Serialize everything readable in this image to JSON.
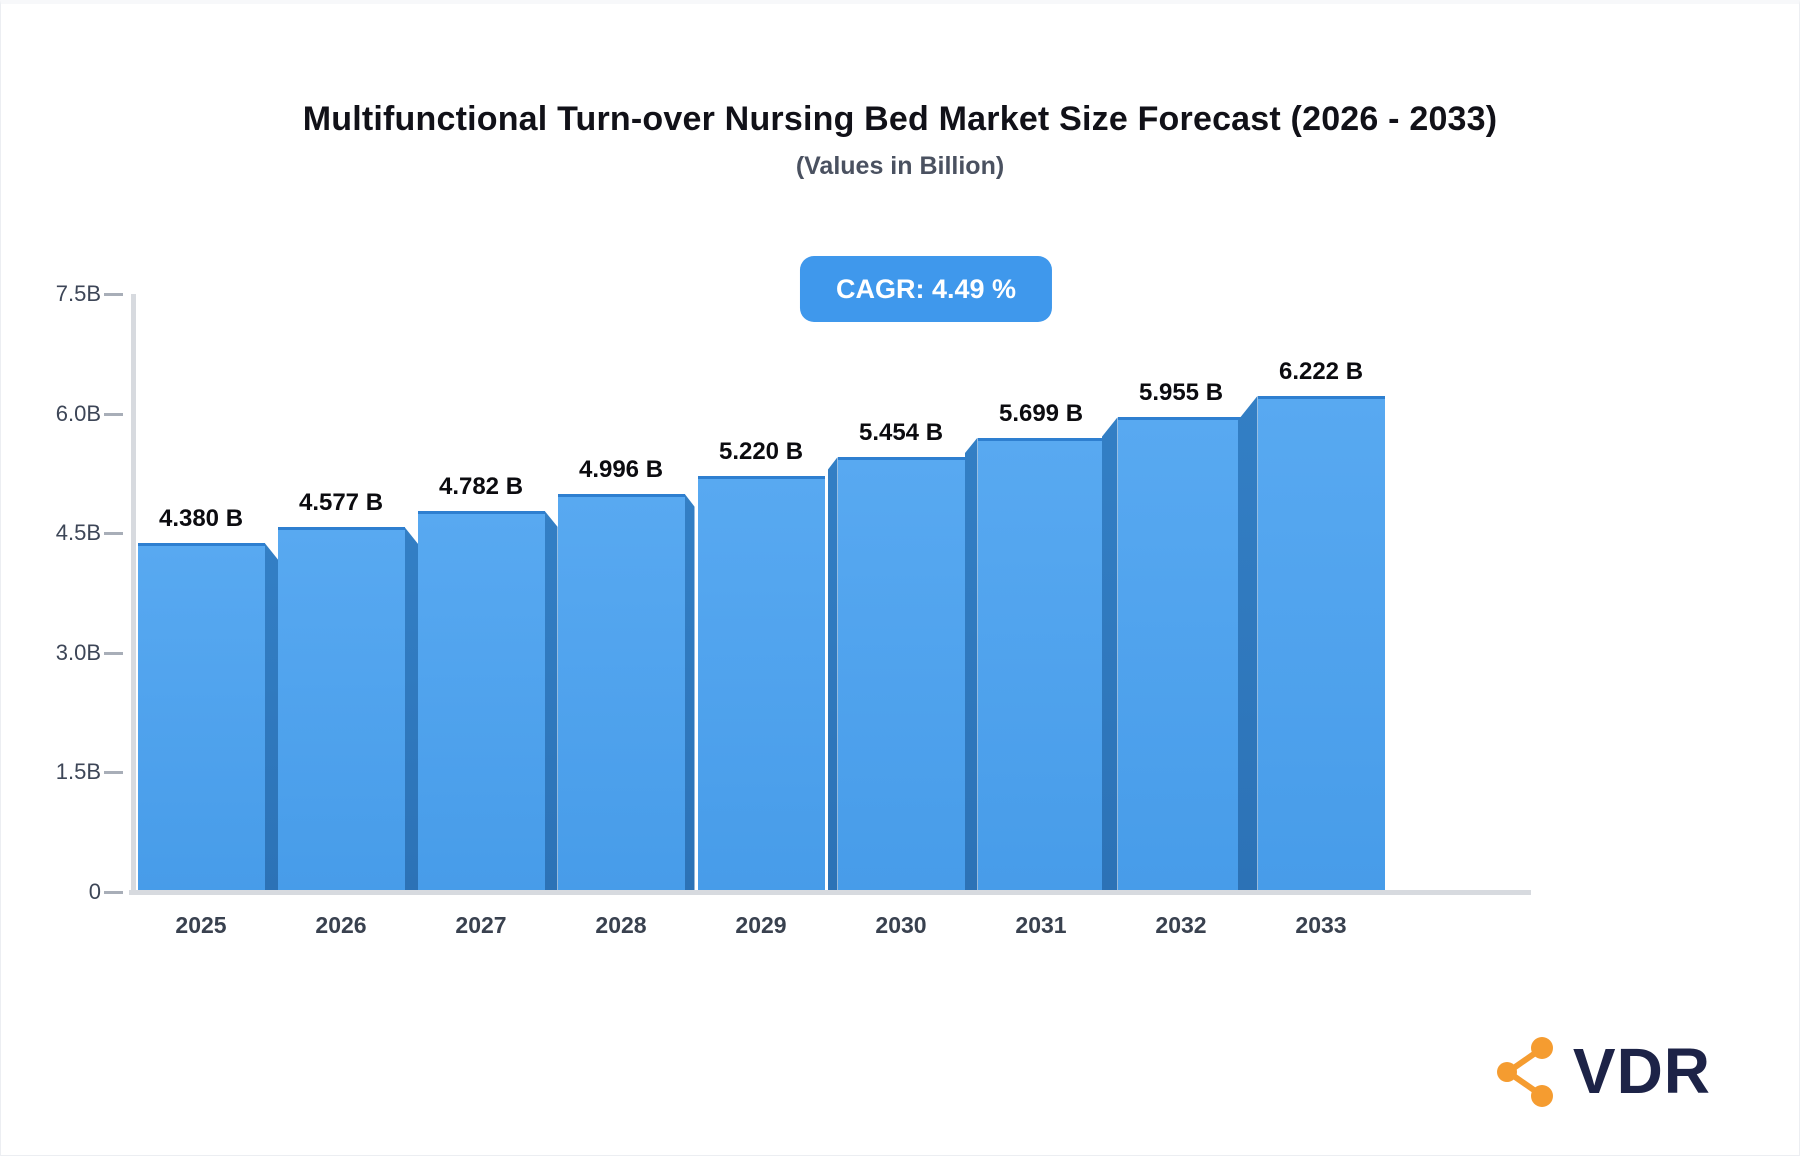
{
  "header": {
    "title": "Multifunctional Turn-over Nursing Bed Market Size Forecast (2026 - 2033)",
    "subtitle": "(Values in Billion)"
  },
  "badge": {
    "label": "CAGR: 4.49 %"
  },
  "chart_data": {
    "type": "bar",
    "title": "Multifunctional Turn-over Nursing Bed Market Size Forecast (2026 - 2033)",
    "subtitle": "(Values in Billion)",
    "categories": [
      "2025",
      "2026",
      "2027",
      "2028",
      "2029",
      "2030",
      "2031",
      "2032",
      "2033"
    ],
    "values": [
      4.38,
      4.577,
      4.782,
      4.996,
      5.22,
      5.454,
      5.699,
      5.955,
      6.222
    ],
    "value_labels": [
      "4.380 B",
      "4.577 B",
      "4.782 B",
      "4.996 B",
      "5.220 B",
      "5.454 B",
      "5.699 B",
      "5.955 B",
      "6.222 B"
    ],
    "unit": "Billion",
    "annotation": "CAGR: 4.49 %",
    "y_axis": {
      "tick_labels": [
        "0",
        "1.5B",
        "3.0B",
        "4.5B",
        "6.0B",
        "7.5B"
      ],
      "tick_values": [
        0,
        1.5,
        3.0,
        4.5,
        6.0,
        7.5
      ],
      "ylim": [
        0,
        7.5
      ]
    },
    "xlabel": "",
    "ylabel": "",
    "grid": "off",
    "legend": "none"
  },
  "branding": {
    "logo_text": "VDR",
    "logo_icon": "share-network-icon"
  },
  "colors": {
    "bar_front_top": "#58a9f1",
    "bar_front_bottom": "#479ce9",
    "bar_top_edge": "#2e7fd0",
    "bar_side_top": "#337fc5",
    "bar_side_bottom": "#2c72b6",
    "axis_line": "#d7dadf",
    "tick_dash": "#a8aeb8",
    "badge_bg": "#3f98ec",
    "badge_text": "#ffffff",
    "logo_orange": "#f59c30",
    "logo_navy": "#1d2347"
  }
}
